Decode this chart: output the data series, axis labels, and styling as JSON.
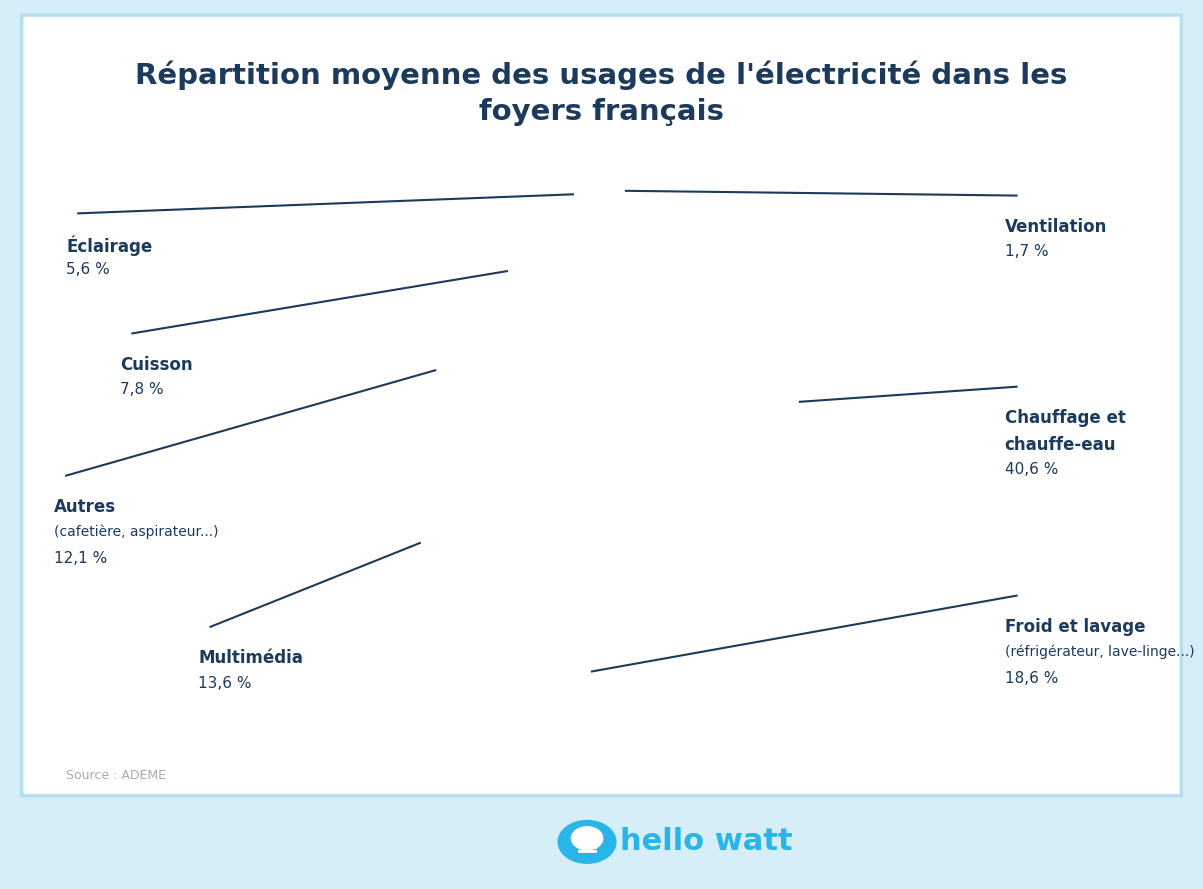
{
  "title": "Répartition moyenne des usages de l'électricité dans les\nfoyers français",
  "slices": [
    {
      "label": "Ventilation",
      "label2": "",
      "pct_label": "1,7 %",
      "value": 1.7,
      "color": "#1b3a5c"
    },
    {
      "label": "Chauffage et",
      "label2": "chauffe-eau",
      "pct_label": "40,6 %",
      "value": 40.6,
      "color": "#1e4d7b"
    },
    {
      "label": "Froid et lavage",
      "label2": "(réfrigérateur, lave-linge...)",
      "pct_label": "18,6 %",
      "value": 18.6,
      "color": "#1a7bbf"
    },
    {
      "label": "Multimédia",
      "label2": "",
      "pct_label": "13,6 %",
      "value": 13.6,
      "color": "#1a9ed4"
    },
    {
      "label": "Autres",
      "label2": "(cafetière, aspirateur...)",
      "pct_label": "12,1 %",
      "value": 12.1,
      "color": "#29b5e8"
    },
    {
      "label": "Cuisson",
      "label2": "",
      "pct_label": "7,8 %",
      "value": 7.8,
      "color": "#5ac8f0"
    },
    {
      "label": "Éclairage",
      "label2": "",
      "pct_label": "5,6 %",
      "value": 5.6,
      "color": "#a8dff5"
    }
  ],
  "source": "Source : ADEME",
  "bg_outer": "#d6eef8",
  "bg_inner": "#ffffff",
  "title_color": "#1b3a5c",
  "label_color": "#1b3a5c",
  "line_color": "#1b3a5c",
  "source_color": "#aaaaaa",
  "footer_bg": "#d6eef8",
  "footer_text": "hello watt",
  "footer_icon_color": "#29b5e8",
  "footer_text_color": "#29b5e8",
  "startangle": 90
}
